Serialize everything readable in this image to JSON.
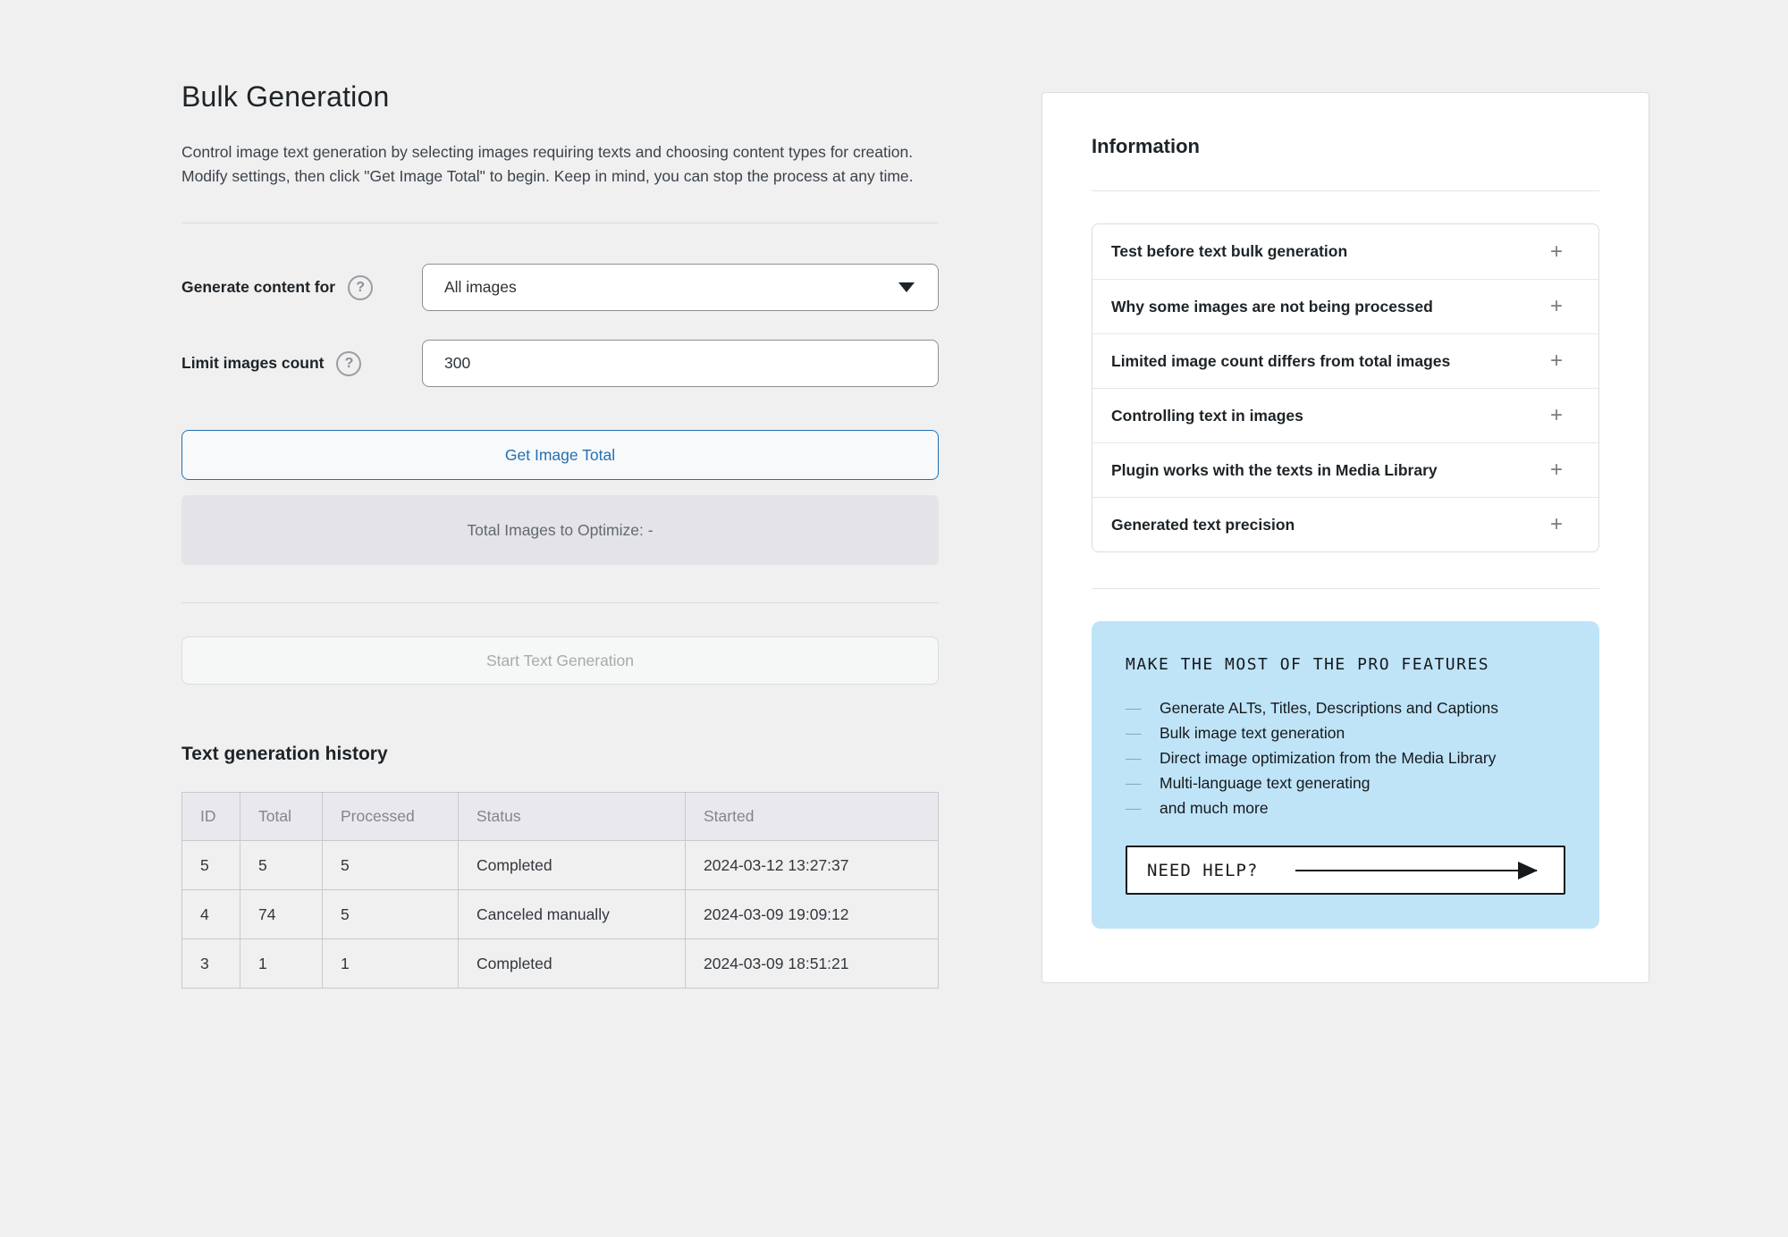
{
  "page": {
    "title": "Bulk Generation",
    "description": "Control image text generation by selecting images requiring texts and choosing content types for creation. Modify settings, then click \"Get Image Total\" to begin. Keep in mind, you can stop the process at any time."
  },
  "form": {
    "generate_for": {
      "label": "Generate content for",
      "value": "All images",
      "help_icon": "?"
    },
    "limit": {
      "label": "Limit images count",
      "value": "300",
      "help_icon": "?"
    },
    "get_total_button": "Get Image Total",
    "total_box": "Total Images to Optimize: -",
    "start_button": "Start Text Generation"
  },
  "history": {
    "heading": "Text generation history",
    "columns": [
      "ID",
      "Total",
      "Processed",
      "Status",
      "Started"
    ],
    "rows": [
      [
        "5",
        "5",
        "5",
        "Completed",
        "2024-03-12 13:27:37"
      ],
      [
        "4",
        "74",
        "5",
        "Canceled manually",
        "2024-03-09 19:09:12"
      ],
      [
        "3",
        "1",
        "1",
        "Completed",
        "2024-03-09 18:51:21"
      ]
    ]
  },
  "info": {
    "heading": "Information",
    "expand_icon": "+",
    "items": [
      "Test before text bulk generation",
      "Why some images are not being processed",
      "Limited image count differs from total images",
      "Controlling text in images",
      "Plugin works with the texts in Media Library",
      "Generated text precision"
    ]
  },
  "promo": {
    "heading": "MAKE THE MOST OF THE PRO FEATURES",
    "bullet": "—",
    "features": [
      "Generate ALTs, Titles, Descriptions and Captions",
      "Bulk image text generation",
      "Direct image optimization from the Media Library",
      "Multi-language text generating",
      "and much more"
    ],
    "help_button": "NEED HELP?"
  },
  "colors": {
    "accent_blue": "#2271b1",
    "promo_bg": "#bfe4f8",
    "page_bg": "#f0f0f1"
  }
}
